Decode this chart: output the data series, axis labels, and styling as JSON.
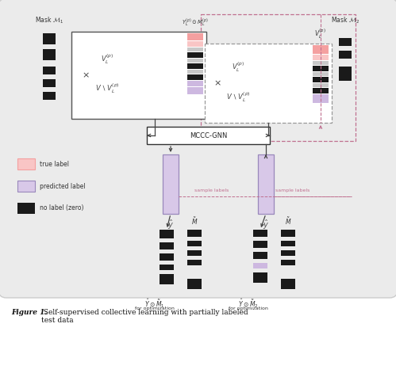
{
  "bg_color": "#ebebeb",
  "fig_bg": "#ffffff",
  "salmon": "#f4a0a0",
  "lavender": "#cdb8e0",
  "black": "#1a1a1a",
  "pink_light": "#f9c5c5",
  "purple_light": "#d8c8e8",
  "dashed_color": "#c07090",
  "arrow_color": "#555555",
  "gnn_edge": "#333333",
  "box1_edge": "#555555",
  "box2_edge": "#999999",
  "mask1_label": "Mask $\\mathcal{M}_1$",
  "mask2_label": "Mask $\\mathcal{M}_2$",
  "gnn_label": "MCCC-GNN",
  "sample_labels": "sample labels",
  "caption_bold": "Figure 1.",
  "caption_rest": " Self-supervised collective learning with partially labeled\ntest data"
}
